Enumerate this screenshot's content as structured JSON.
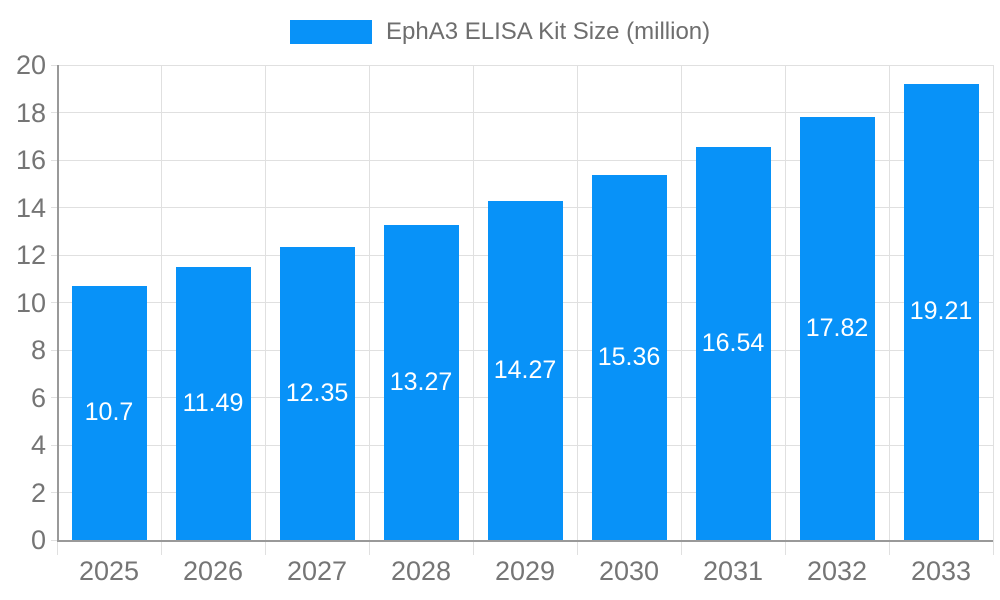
{
  "colors": {
    "bar": "#0892f8",
    "grid": "#e0e0e0",
    "axis": "#999999",
    "tick_label": "#757575",
    "legend_label": "#6e6e6e",
    "value_label": "#ffffff"
  },
  "chart_data": {
    "type": "bar",
    "title": "",
    "categories": [
      "2025",
      "2026",
      "2027",
      "2028",
      "2029",
      "2030",
      "2031",
      "2032",
      "2033"
    ],
    "series": [
      {
        "name": "EphA3 ELISA Kit Size (million)",
        "values": [
          10.7,
          11.49,
          12.35,
          13.27,
          14.27,
          15.36,
          16.54,
          17.82,
          19.21
        ]
      }
    ],
    "value_labels": [
      "10.7",
      "11.49",
      "12.35",
      "13.27",
      "14.27",
      "15.36",
      "16.54",
      "17.82",
      "19.21"
    ],
    "xlabel": "",
    "ylabel": "",
    "ylim": [
      0,
      20
    ],
    "yticks": [
      0,
      2,
      4,
      6,
      8,
      10,
      12,
      14,
      16,
      18,
      20
    ],
    "grid": true,
    "legend_position": "top-center"
  }
}
